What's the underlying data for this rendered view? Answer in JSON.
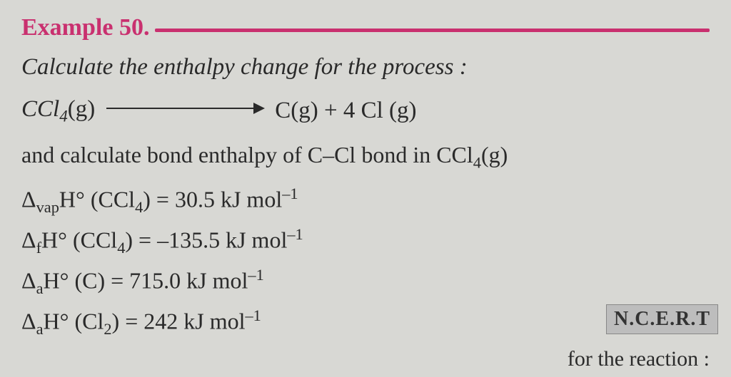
{
  "header": {
    "label": "Example 50.",
    "color": "#c9306f",
    "rule_color": "#c9306f"
  },
  "prompt": "Calculate the enthalpy change for the process :",
  "equation": {
    "lhs": "CCl",
    "lhs_sub": "4",
    "lhs_state": "(g)",
    "rhs_a": "C(g)",
    "plus": " + 4 Cl (g)"
  },
  "subtext_a": "and calculate bond enthalpy of C–Cl bond in CCl",
  "subtext_a_sub": "4",
  "subtext_a_state": "(g)",
  "data": [
    {
      "delta_sub": "vap",
      "species": "CCl",
      "species_sub": "4",
      "value": "= 30.5 kJ mol",
      "exp": "–1"
    },
    {
      "delta_sub": "f",
      "species": "CCl",
      "species_sub": "4",
      "value": "= –135.5 kJ mol",
      "exp": "–1"
    },
    {
      "delta_sub": "a",
      "species": "C",
      "species_sub": "",
      "value": "= 715.0 kJ mol",
      "exp": "–1"
    },
    {
      "delta_sub": "a",
      "species": "Cl",
      "species_sub": "2",
      "value": "= 242 kJ mol",
      "exp": "–1"
    }
  ],
  "badge": "N.C.E.R.T",
  "partial": "for the reaction :",
  "colors": {
    "text": "#2a2a2a",
    "background": "#d8d8d4"
  }
}
